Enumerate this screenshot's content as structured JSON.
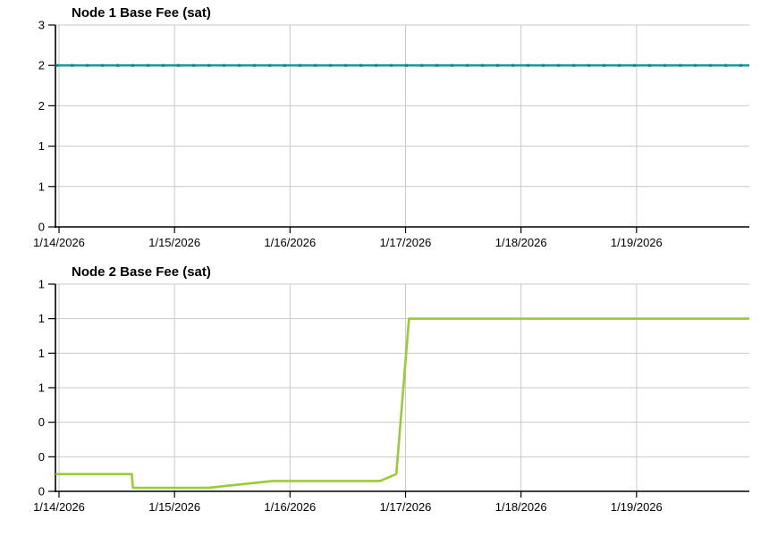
{
  "page": {
    "background_color": "#ffffff",
    "axis_color": "#000000",
    "gridline_color": "#c9c9c9",
    "text_color": "#000000"
  },
  "chart_data": [
    {
      "type": "line",
      "title": "Node 1 Base Fee (sat)",
      "series_name": "Node 1 base fee",
      "x_unit": "days since 1/14/2026 00:00",
      "x": [
        -0.03,
        5.98
      ],
      "values": [
        2,
        2
      ],
      "ylim": [
        0,
        2.5
      ],
      "y_tick_values": [
        0,
        0.5,
        1,
        1.5,
        2,
        2.5
      ],
      "y_tick_labels": [
        "0",
        "1",
        "1",
        "2",
        "2",
        "3"
      ],
      "x_tick_positions": [
        0,
        1,
        2,
        3,
        4,
        5
      ],
      "x_tick_labels": [
        "1/14/2026",
        "1/15/2026",
        "1/16/2026",
        "1/17/2026",
        "1/18/2026",
        "1/19/2026"
      ],
      "grid": true,
      "legend": false,
      "line_color": "#1a9b9b",
      "marker_color": "#0e8282"
    },
    {
      "type": "line",
      "title": "Node 2 Base Fee (sat)",
      "series_name": "Node 2 base fee",
      "x_unit": "days since 1/14/2026 00:00",
      "x": [
        -0.03,
        0.63,
        0.64,
        1.29,
        1.85,
        2.78,
        2.92,
        3.03,
        5.98
      ],
      "values": [
        0.1,
        0.1,
        0.02,
        0.02,
        0.06,
        0.06,
        0.1,
        1.0,
        1.0
      ],
      "ylim": [
        0,
        1.2
      ],
      "y_tick_values": [
        0,
        0.2,
        0.4,
        0.6,
        0.8,
        1.0,
        1.2
      ],
      "y_tick_labels": [
        "0",
        "0",
        "0",
        "1",
        "1",
        "1",
        "1"
      ],
      "x_tick_positions": [
        0,
        1,
        2,
        3,
        4,
        5
      ],
      "x_tick_labels": [
        "1/14/2026",
        "1/15/2026",
        "1/16/2026",
        "1/17/2026",
        "1/18/2026",
        "1/19/2026"
      ],
      "grid": true,
      "legend": false,
      "line_color": "#9acb35",
      "marker_color": null
    }
  ]
}
